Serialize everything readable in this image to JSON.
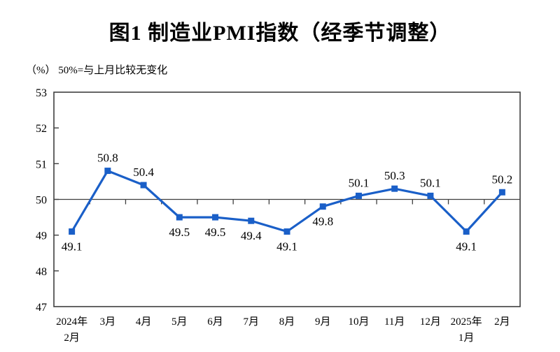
{
  "chart_data": {
    "type": "line",
    "title": "图1 制造业PMI指数（经季节调整）",
    "unit_note": "（%） 50%=与上月比较无变化",
    "categories": [
      [
        "2024年",
        "2月"
      ],
      [
        "3月"
      ],
      [
        "4月"
      ],
      [
        "5月"
      ],
      [
        "6月"
      ],
      [
        "7月"
      ],
      [
        "8月"
      ],
      [
        "9月"
      ],
      [
        "10月"
      ],
      [
        "11月"
      ],
      [
        "12月"
      ],
      [
        "2025年",
        "1月"
      ],
      [
        "2月"
      ]
    ],
    "values": [
      49.1,
      50.8,
      50.4,
      49.5,
      49.5,
      49.4,
      49.1,
      49.8,
      50.1,
      50.3,
      50.1,
      49.1,
      50.2
    ],
    "data_labels": [
      "49.1",
      "50.8",
      "50.4",
      "49.5",
      "49.5",
      "49.4",
      "49.1",
      "49.8",
      "50.1",
      "50.3",
      "50.1",
      "49.1",
      "50.2"
    ],
    "label_positions": [
      "below",
      "above",
      "above",
      "below",
      "below",
      "below",
      "below",
      "below",
      "above",
      "above",
      "above",
      "below",
      "above"
    ],
    "ylim": [
      47,
      53
    ],
    "yticks": [
      53,
      52,
      51,
      50,
      49,
      48,
      47
    ],
    "reference_line": 50,
    "grid": false,
    "legend": "none",
    "marker": "square",
    "line_color": "#1a5fc8",
    "axis_color": "#3f3f3f",
    "text_color": "#000000",
    "background_color": "#ffffff"
  }
}
